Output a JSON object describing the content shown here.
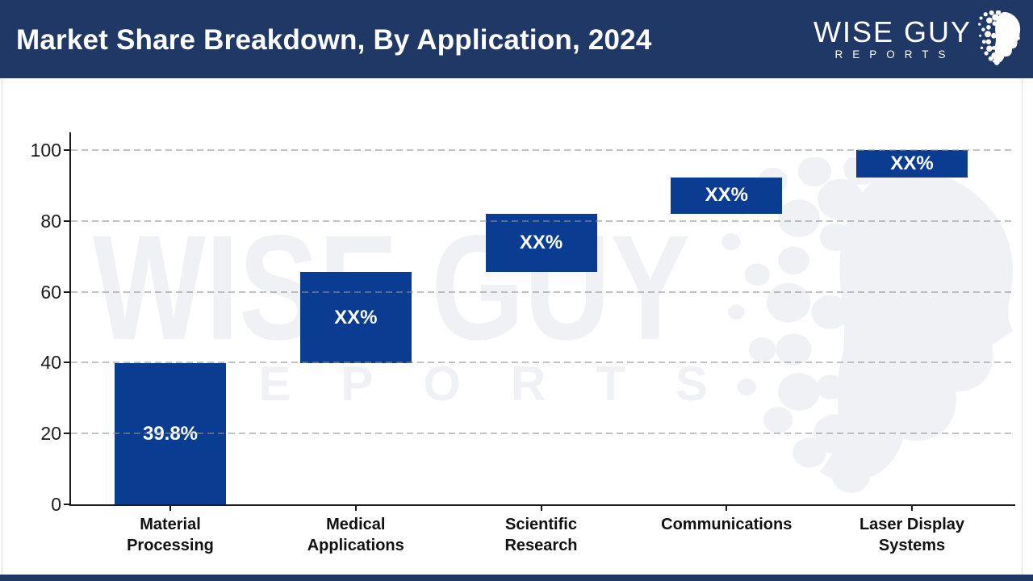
{
  "header": {
    "title": "Market Share Breakdown, By Application, 2024",
    "logo": {
      "brand_top": "WISE GUY",
      "brand_bottom": "REPORTS"
    }
  },
  "watermark": {
    "line1": "WISE GUY",
    "line2": "REPORTS"
  },
  "chart_data": {
    "type": "bar",
    "subtype": "waterfall",
    "title": "Market Share Breakdown, By Application, 2024",
    "xlabel": "",
    "ylabel": "",
    "ylim": [
      0,
      105
    ],
    "yticks": [
      0,
      20,
      40,
      60,
      80,
      100
    ],
    "grid": "horizontal-dashed",
    "legend": "none",
    "categories": [
      "Material Processing",
      "Medical Applications",
      "Scientific Research",
      "Communications",
      "Laser Display Systems"
    ],
    "category_lines": [
      [
        "Material",
        "Processing"
      ],
      [
        "Medical",
        "Applications"
      ],
      [
        "Scientific",
        "Research"
      ],
      [
        "Communications"
      ],
      [
        "Laser Display",
        "Systems"
      ]
    ],
    "bars": [
      {
        "category": "Material Processing",
        "start": 0,
        "end": 39.8,
        "value_label": "39.8%"
      },
      {
        "category": "Medical Applications",
        "start": 39.8,
        "end": 65.5,
        "value_label": "XX%"
      },
      {
        "category": "Scientific Research",
        "start": 65.5,
        "end": 82.0,
        "value_label": "XX%"
      },
      {
        "category": "Communications",
        "start": 82.0,
        "end": 92.3,
        "value_label": "XX%"
      },
      {
        "category": "Laser Display Systems",
        "start": 92.3,
        "end": 100.0,
        "value_label": "XX%"
      }
    ]
  },
  "colors": {
    "header_bg": "#203865",
    "bar": "#0a3d92",
    "bar_label": "#ffffff",
    "grid": "#c9c9c9",
    "axis": "#1a1a1a",
    "watermark": "#f0f1f4"
  }
}
